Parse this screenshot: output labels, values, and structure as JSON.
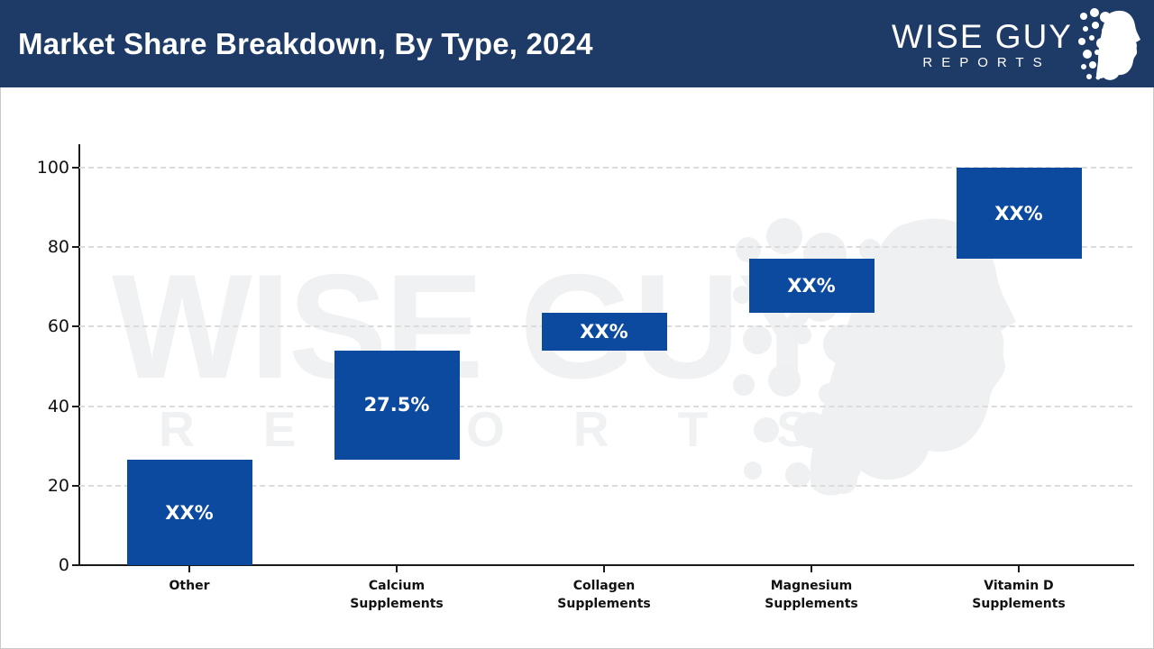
{
  "header": {
    "title": "Market Share Breakdown, By Type, 2024",
    "bg_color": "#1e3a66",
    "logo": {
      "line1": "WISE GUY",
      "line2": "REPORTS"
    }
  },
  "watermark": {
    "line1": "WISE GUY",
    "line2": "REPORTS"
  },
  "chart_data": {
    "type": "bar",
    "variant": "floating-waterfall",
    "title": "Market Share Breakdown, By Type, 2024",
    "categories": [
      "Other",
      "Calcium Supplements",
      "Collagen Supplements",
      "Magnesium Supplements",
      "Vitamin D Supplements"
    ],
    "bar_ranges": [
      [
        0,
        26.5
      ],
      [
        26.5,
        54
      ],
      [
        54,
        63.5
      ],
      [
        63.5,
        77
      ],
      [
        77,
        100
      ]
    ],
    "bar_labels": [
      "XX%",
      "27.5%",
      "XX%",
      "XX%",
      "XX%"
    ],
    "xlabel": "",
    "ylabel": "",
    "ylim": [
      0,
      100
    ],
    "yticks": [
      0,
      20,
      40,
      60,
      80,
      100
    ],
    "grid": "horizontal-dashed",
    "legend": "none",
    "bar_color": "#0c4aa0",
    "bar_label_color": "#ffffff",
    "axis_color": "#1a1a1a",
    "grid_color": "#dcdcdc"
  }
}
